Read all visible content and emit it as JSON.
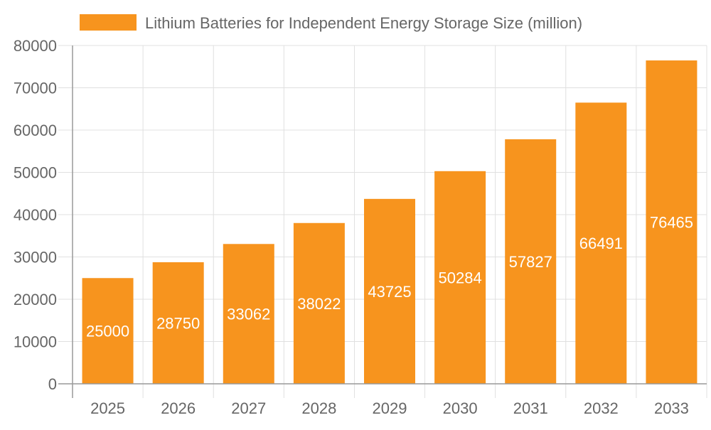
{
  "chart_data": {
    "type": "bar",
    "title": "",
    "xlabel": "",
    "ylabel": "",
    "categories": [
      "2025",
      "2026",
      "2027",
      "2028",
      "2029",
      "2030",
      "2031",
      "2032",
      "2033"
    ],
    "series": [
      {
        "name": "Lithium Batteries for Independent Energy Storage Size (million)",
        "values": [
          25000,
          28750,
          33062,
          38022,
          43725,
          50284,
          57827,
          66491,
          76465
        ]
      }
    ],
    "ylim": [
      0,
      80000
    ],
    "yticks": [
      0,
      10000,
      20000,
      30000,
      40000,
      50000,
      60000,
      70000,
      80000
    ],
    "grid": true,
    "legend_position": "top",
    "data_labels": true,
    "colors": {
      "bar": "#f7941e",
      "label": "#ffffff",
      "text": "#666666",
      "grid": "#e0e0e0",
      "axis": "#999999"
    }
  }
}
